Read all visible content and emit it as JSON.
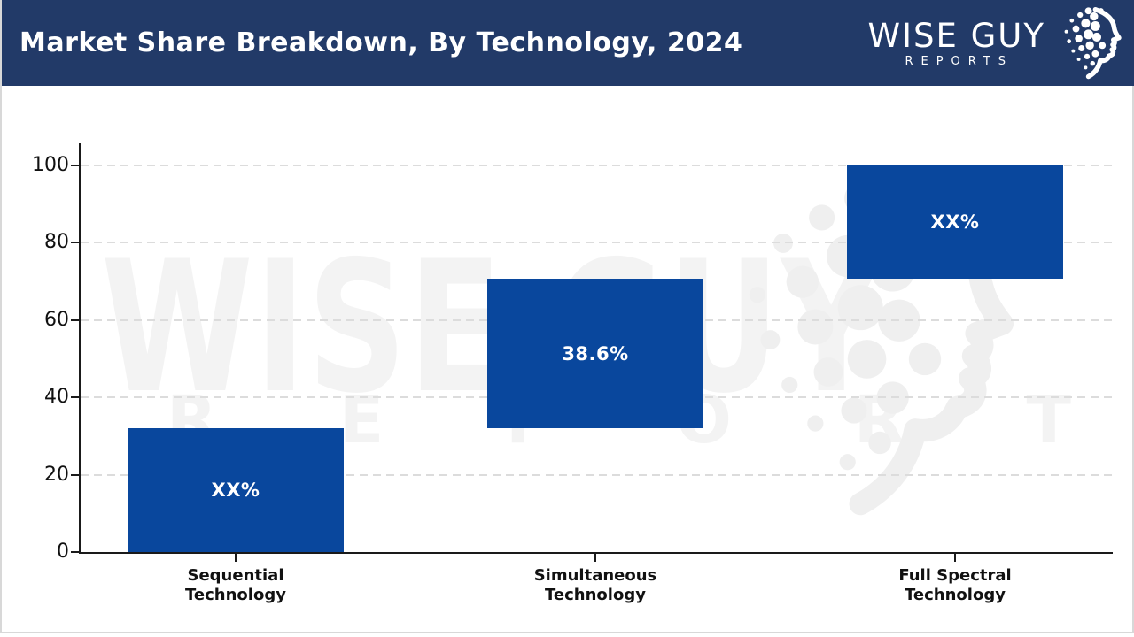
{
  "header": {
    "title": "Market Share Breakdown, By Technology, 2024",
    "logo_line1": "WISE GUY",
    "logo_line2": "REPORTS"
  },
  "watermark": {
    "line1": "WISE GUY",
    "line2": "REPORTS"
  },
  "colors": {
    "header_bg": "#223a68",
    "bar": "#09479d",
    "grid": "#dcdcdc",
    "axis": "#1a1a1a",
    "watermark_text": "#f3f3f3",
    "watermark_face": "#efefef",
    "value_label_text": "#ffffff"
  },
  "chart_data": {
    "type": "bar",
    "variant": "waterfall",
    "title": "Market Share Breakdown, By Technology, 2024",
    "categories": [
      "Sequential\nTechnology",
      "Simultaneous\nTechnology",
      "Full Spectral\nTechnology"
    ],
    "segments": [
      {
        "category": "Sequential Technology",
        "start": 0,
        "end": 32,
        "value_label": "XX%"
      },
      {
        "category": "Simultaneous Technology",
        "start": 32,
        "end": 70.6,
        "value": 38.6,
        "value_label": "38.6%"
      },
      {
        "category": "Full Spectral Technology",
        "start": 70.6,
        "end": 100,
        "value_label": "XX%"
      }
    ],
    "ylim": [
      0,
      100
    ],
    "yticks": [
      0,
      20,
      40,
      60,
      80,
      100
    ],
    "xlabel": "",
    "ylabel": "",
    "grid": "horizontal-dashed",
    "legend": null
  }
}
